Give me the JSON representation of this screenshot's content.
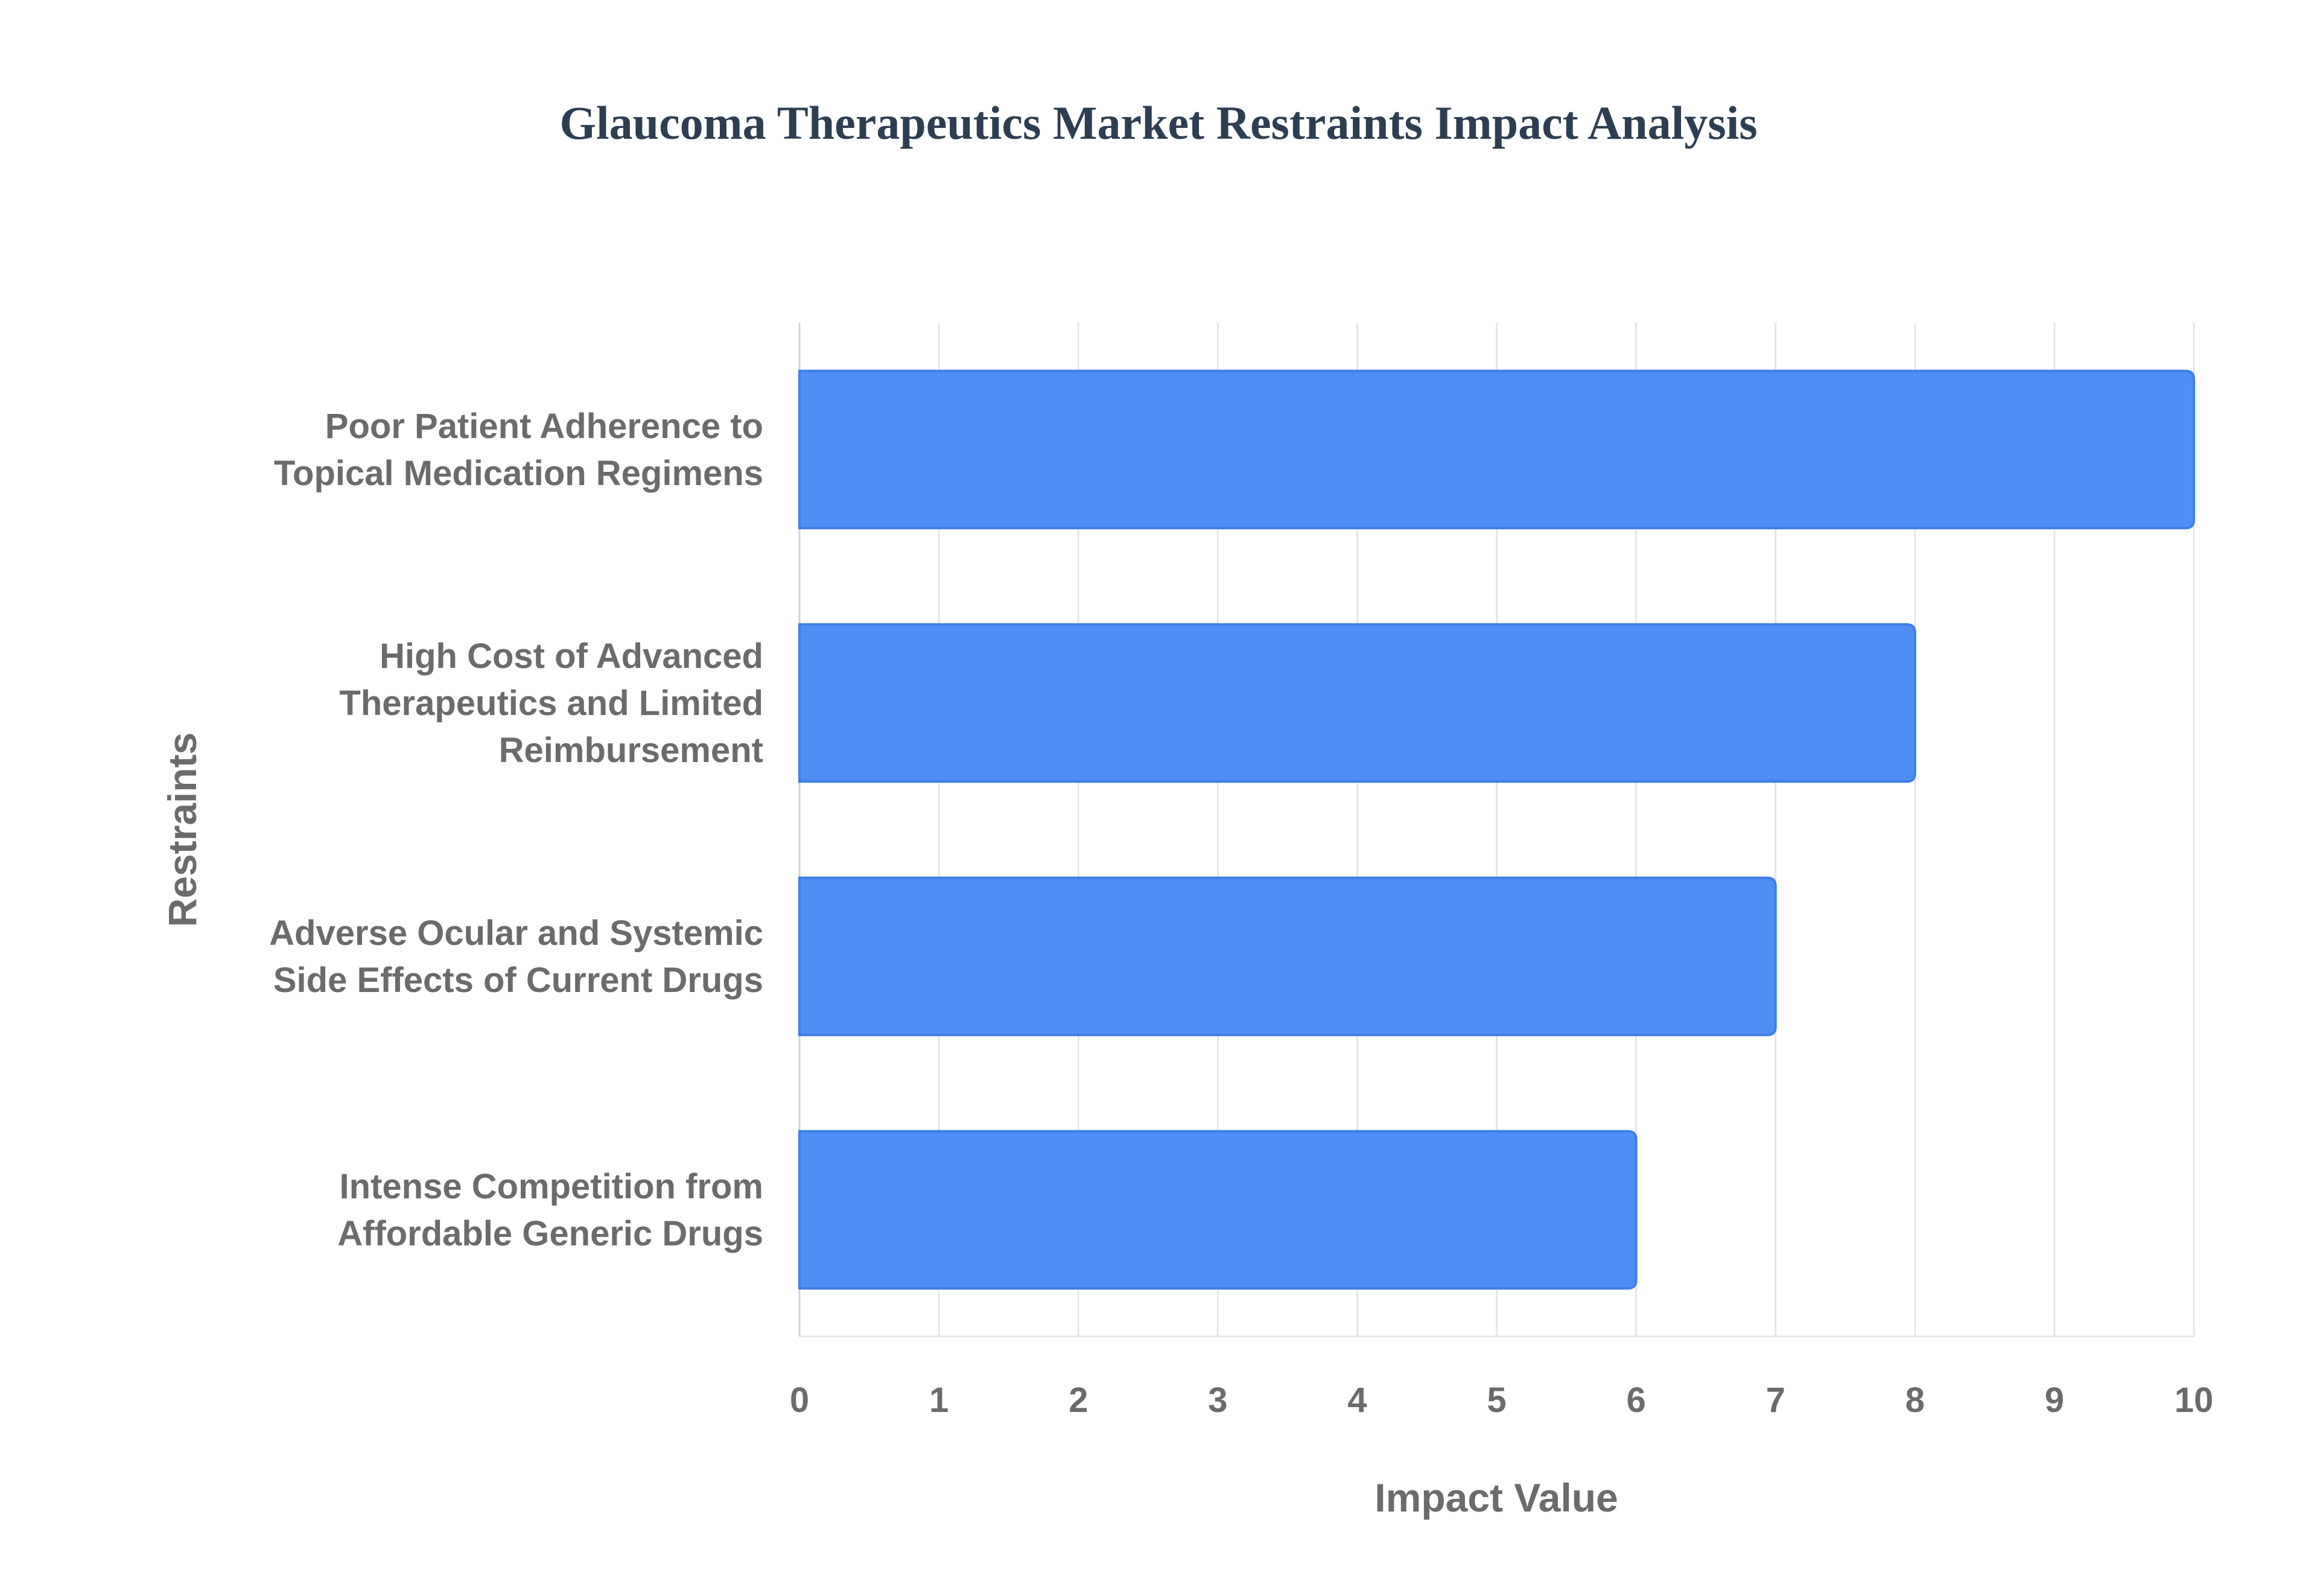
{
  "chart_data": {
    "type": "bar",
    "orientation": "horizontal",
    "title": "Glaucoma Therapeutics Market Restraints Impact Analysis",
    "xlabel": "Impact Value",
    "ylabel": "Restraints",
    "categories": [
      [
        "Poor Patient Adherence to",
        "Topical Medication Regimens"
      ],
      [
        "High Cost of Advanced",
        "Therapeutics and Limited",
        "Reimbursement"
      ],
      [
        "Adverse Ocular and Systemic",
        "Side Effects of Current Drugs"
      ],
      [
        "Intense Competition from",
        "Affordable Generic Drugs"
      ]
    ],
    "values": [
      10,
      8,
      7,
      6
    ],
    "xlim": [
      0,
      10
    ],
    "xticks": [
      "0",
      "1",
      "2",
      "3",
      "4",
      "5",
      "6",
      "7",
      "8",
      "9",
      "10"
    ],
    "grid": true,
    "legend": "none"
  },
  "colors": {
    "bar_fill": "#4f8ef5",
    "bar_stroke": "#3f7ee8",
    "title": "#2e3e52",
    "axis_text": "#6b6b6b",
    "grid": "#e6e6e6",
    "axis_line": "#d4d4d4"
  }
}
